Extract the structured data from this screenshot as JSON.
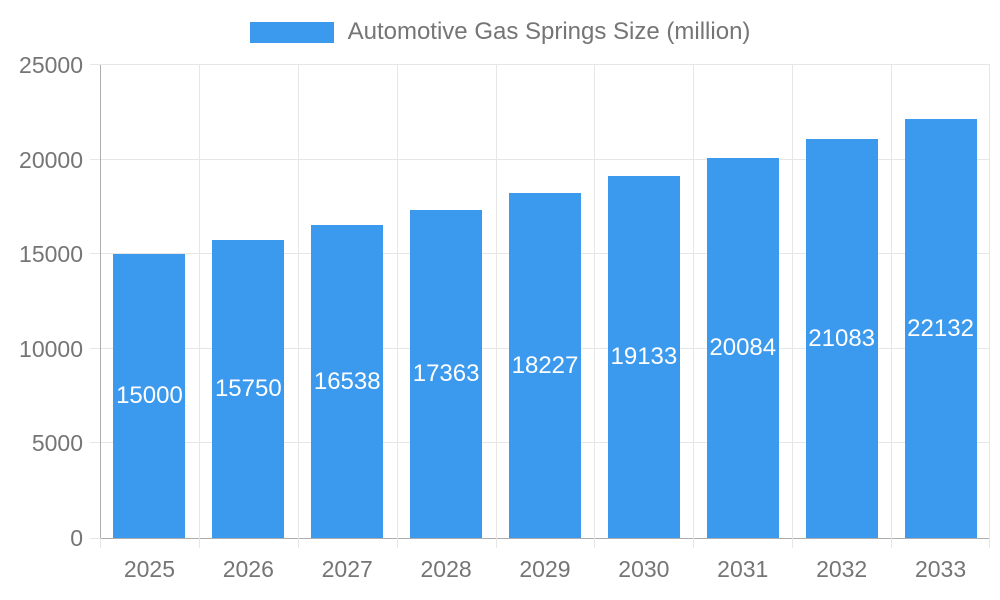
{
  "chart_data": {
    "type": "bar",
    "title": "Automotive Gas Springs Size (million)",
    "categories": [
      "2025",
      "2026",
      "2027",
      "2028",
      "2029",
      "2030",
      "2031",
      "2032",
      "2033"
    ],
    "values": [
      15000,
      15750,
      16538,
      17363,
      18227,
      19133,
      20084,
      21083,
      22132
    ],
    "value_labels": [
      "15000",
      "15750",
      "16538",
      "17363",
      "18227",
      "19133",
      "20084",
      "21083",
      "22132"
    ],
    "xlabel": "",
    "ylabel": "",
    "ylim": [
      0,
      25000
    ],
    "yticks": [
      0,
      5000,
      10000,
      15000,
      20000,
      25000
    ],
    "ytick_labels": [
      "0",
      "5000",
      "10000",
      "15000",
      "20000",
      "25000"
    ],
    "grid": "on",
    "legend_position": "top-center",
    "colors": {
      "bar": "#3b9aee",
      "text": "#757575",
      "value_label": "#ffffff",
      "grid": "#e6e6e6",
      "axis": "#adadad",
      "background": "#ffffff"
    }
  }
}
